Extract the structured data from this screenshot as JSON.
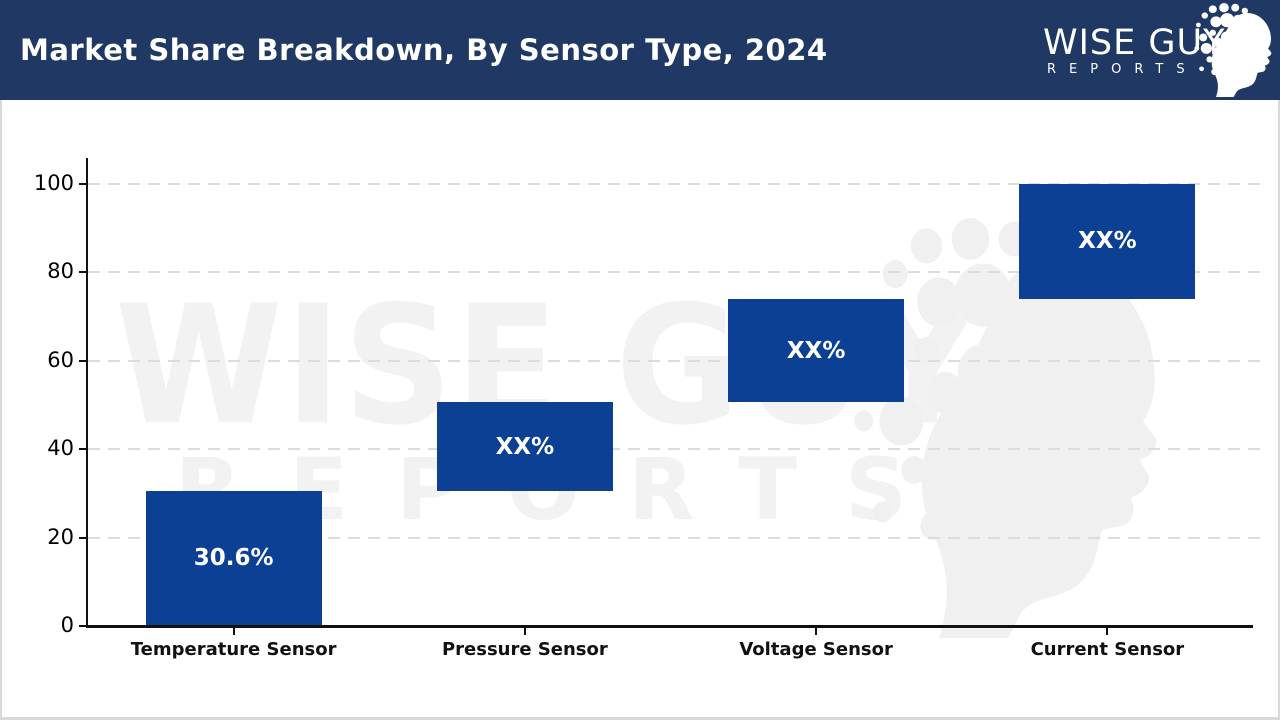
{
  "header": {
    "title": "Market Share Breakdown, By Sensor Type, 2024",
    "logo": {
      "line1": "WISE GUY",
      "line2": "REPORTS"
    }
  },
  "watermark": {
    "line1": "WISE GUY",
    "line2": "REPORTS"
  },
  "chart_data": {
    "type": "bar",
    "subtype": "waterfall-floating-bars",
    "title": "Market Share Breakdown, By Sensor Type, 2024",
    "xlabel": "",
    "ylabel": "",
    "categories": [
      "Temperature Sensor",
      "Pressure Sensor",
      "Voltage Sensor",
      "Current Sensor"
    ],
    "segments": [
      {
        "category": "Temperature Sensor",
        "start": 0,
        "end": 30.6,
        "label": "30.6%"
      },
      {
        "category": "Pressure Sensor",
        "start": 30.6,
        "end": 50.6,
        "label": "XX%"
      },
      {
        "category": "Voltage Sensor",
        "start": 50.6,
        "end": 74,
        "label": "XX%"
      },
      {
        "category": "Current Sensor",
        "start": 74,
        "end": 100,
        "label": "XX%"
      }
    ],
    "ylim": [
      0,
      100
    ],
    "yticks": [
      0,
      20,
      40,
      60,
      80,
      100
    ],
    "grid": "horizontal-dashed",
    "legend": "none",
    "bar_color": "#0c4094",
    "bar_label_color": "#ffffff",
    "header_bg_color": "#1f3864",
    "grid_color": "#dcdcdc",
    "axis_color": "#111111",
    "watermark_color": "#f2f2f3"
  }
}
